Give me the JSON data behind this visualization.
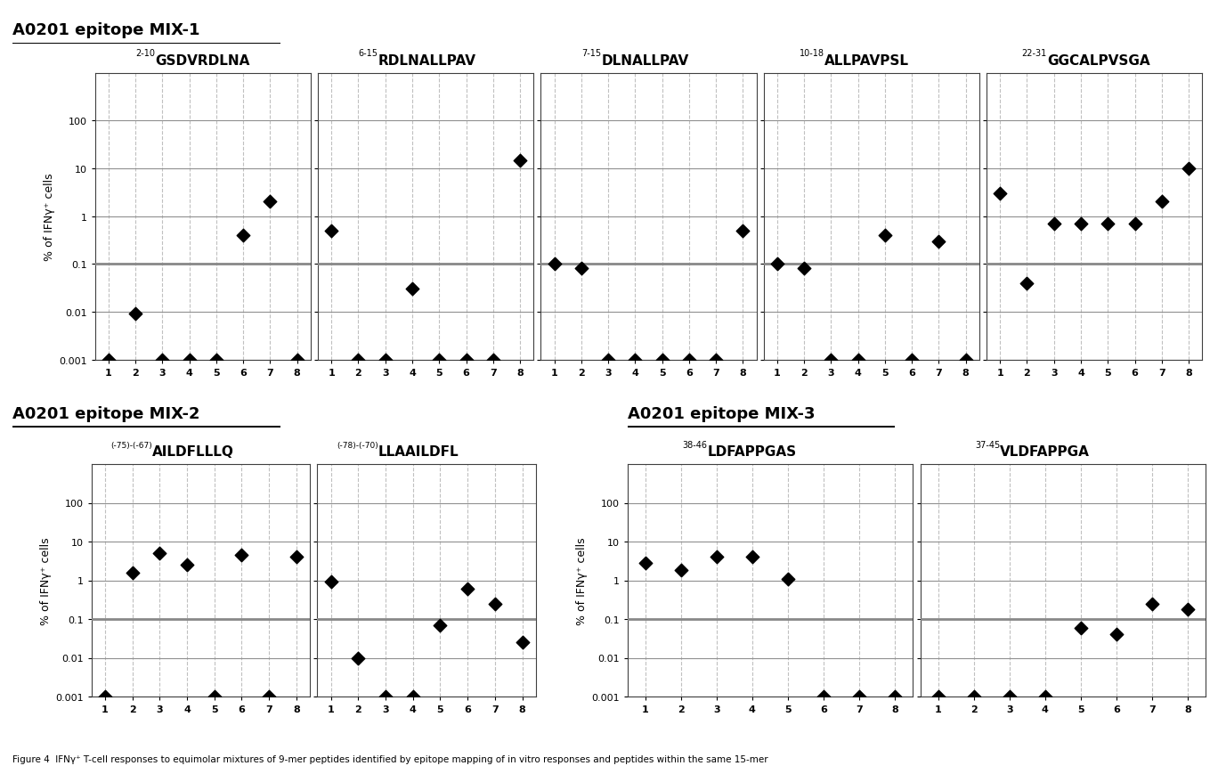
{
  "title_mix1": "A0201 epitope MIX-1",
  "title_mix2": "A0201 epitope MIX-2",
  "title_mix3": "A0201 epitope MIX-3",
  "ylabel": "% of IFNγ⁺ cells",
  "threshold_line": 0.1,
  "plots_mix1": [
    {
      "title_super": "2-10",
      "title_main": "GSDVRDLNA",
      "x": [
        1,
        2,
        3,
        4,
        5,
        6,
        7,
        8
      ],
      "y": [
        0.001,
        0.009,
        0.001,
        0.001,
        0.001,
        0.4,
        2.0,
        0.001
      ]
    },
    {
      "title_super": "6-15",
      "title_main": "RDLNALLPAV",
      "x": [
        1,
        2,
        3,
        4,
        5,
        6,
        7,
        8
      ],
      "y": [
        0.5,
        0.001,
        0.001,
        0.03,
        0.001,
        0.001,
        0.001,
        15.0
      ]
    },
    {
      "title_super": "7-15",
      "title_main": "DLNALLPAV",
      "x": [
        1,
        2,
        3,
        4,
        5,
        6,
        7,
        8
      ],
      "y": [
        0.1,
        0.08,
        0.001,
        0.001,
        0.001,
        0.001,
        0.001,
        0.5
      ]
    },
    {
      "title_super": "10-18",
      "title_main": "ALLPAVPSL",
      "x": [
        1,
        2,
        3,
        4,
        5,
        6,
        7,
        8
      ],
      "y": [
        0.1,
        0.08,
        0.001,
        0.001,
        0.4,
        0.001,
        0.3,
        0.001
      ]
    },
    {
      "title_super": "22-31",
      "title_main": "GGCALPVSGA",
      "x": [
        1,
        2,
        3,
        4,
        5,
        6,
        7,
        8
      ],
      "y": [
        3.0,
        0.04,
        0.7,
        0.7,
        0.7,
        0.7,
        2.0,
        10.0
      ]
    }
  ],
  "plots_mix2": [
    {
      "title_super": "(-75)-(-67)",
      "title_main": "AILDFLLLQ",
      "x": [
        1,
        2,
        3,
        4,
        5,
        6,
        7,
        8
      ],
      "y": [
        0.001,
        1.6,
        5.0,
        2.5,
        0.001,
        4.5,
        0.001,
        4.0
      ]
    },
    {
      "title_super": "(-78)-(-70)",
      "title_main": "LLAAILDFL",
      "x": [
        1,
        2,
        3,
        4,
        5,
        6,
        7,
        8
      ],
      "y": [
        0.9,
        0.01,
        0.001,
        0.001,
        0.07,
        0.6,
        0.25,
        0.025
      ]
    }
  ],
  "plots_mix3": [
    {
      "title_super": "38-46",
      "title_main": "LDFAPPGAS",
      "x": [
        1,
        2,
        3,
        4,
        5,
        6,
        7,
        8
      ],
      "y": [
        2.8,
        1.8,
        4.0,
        4.0,
        1.1,
        0.001,
        0.001,
        0.001
      ]
    },
    {
      "title_super": "37-45",
      "title_main": "VLDFAPPGA",
      "x": [
        1,
        2,
        3,
        4,
        5,
        6,
        7,
        8
      ],
      "y": [
        0.001,
        0.001,
        0.001,
        0.001,
        0.06,
        0.04,
        0.25,
        0.18
      ]
    }
  ],
  "figure_caption": "Figure 4  IFNγ⁺ T-cell responses to equimolar mixtures of 9-mer peptides identified by epitope mapping of in vitro responses and peptides within the same 15-mer",
  "background_color": "#ffffff",
  "marker_color": "black",
  "marker_size": 55,
  "grid_color": "#b0b0b0",
  "threshold_color": "#888888",
  "ylim": [
    0.001,
    1000
  ],
  "yticks": [
    0.001,
    0.01,
    0.1,
    1,
    10,
    100
  ],
  "xticks": [
    1,
    2,
    3,
    4,
    5,
    6,
    7,
    8
  ]
}
